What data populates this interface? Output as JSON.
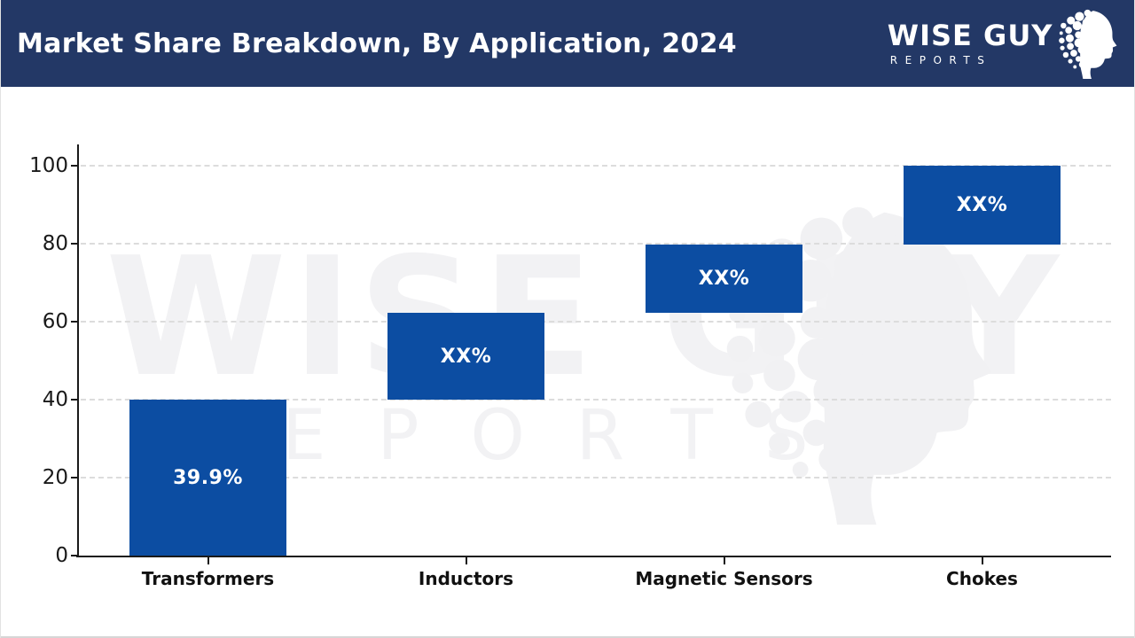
{
  "header": {
    "title": "Market Share Breakdown, By Application, 2024",
    "logo": {
      "line1": "WISE GUY",
      "line2": "REPORTS",
      "icon": "face-dots-icon"
    }
  },
  "watermark": {
    "line1": "WISE GUY",
    "line2": "REPORTS"
  },
  "chart_data": {
    "type": "bar",
    "subtype": "waterfall",
    "title": "Market Share Breakdown, By Application, 2024",
    "categories": [
      "Transformers",
      "Inductors",
      "Magnetic Sensors",
      "Chokes"
    ],
    "segments": [
      {
        "category": "Transformers",
        "start": 0,
        "end": 39.9,
        "value": 39.9,
        "label": "39.9%"
      },
      {
        "category": "Inductors",
        "start": 39.9,
        "end": 62.3,
        "value": 22.4,
        "label": "XX%"
      },
      {
        "category": "Magnetic Sensors",
        "start": 62.3,
        "end": 79.7,
        "value": 17.4,
        "label": "XX%"
      },
      {
        "category": "Chokes",
        "start": 79.7,
        "end": 100,
        "value": 20.3,
        "label": "XX%"
      }
    ],
    "y_ticks": [
      0,
      20,
      40,
      60,
      80,
      100
    ],
    "ylim": [
      0,
      105.5
    ],
    "xlabel": "",
    "ylabel": "",
    "grid": "horizontal-dashed",
    "legend": "none",
    "bar_color": "#0c4da2",
    "bar_label_color": "#ffffff"
  },
  "colors": {
    "header_bg": "#233866",
    "header_text": "#ffffff",
    "bar": "#0c4da2",
    "axis": "#1a1a1a",
    "grid": "#dcdcdc",
    "watermark": "#f2f2f4",
    "background": "#ffffff"
  }
}
